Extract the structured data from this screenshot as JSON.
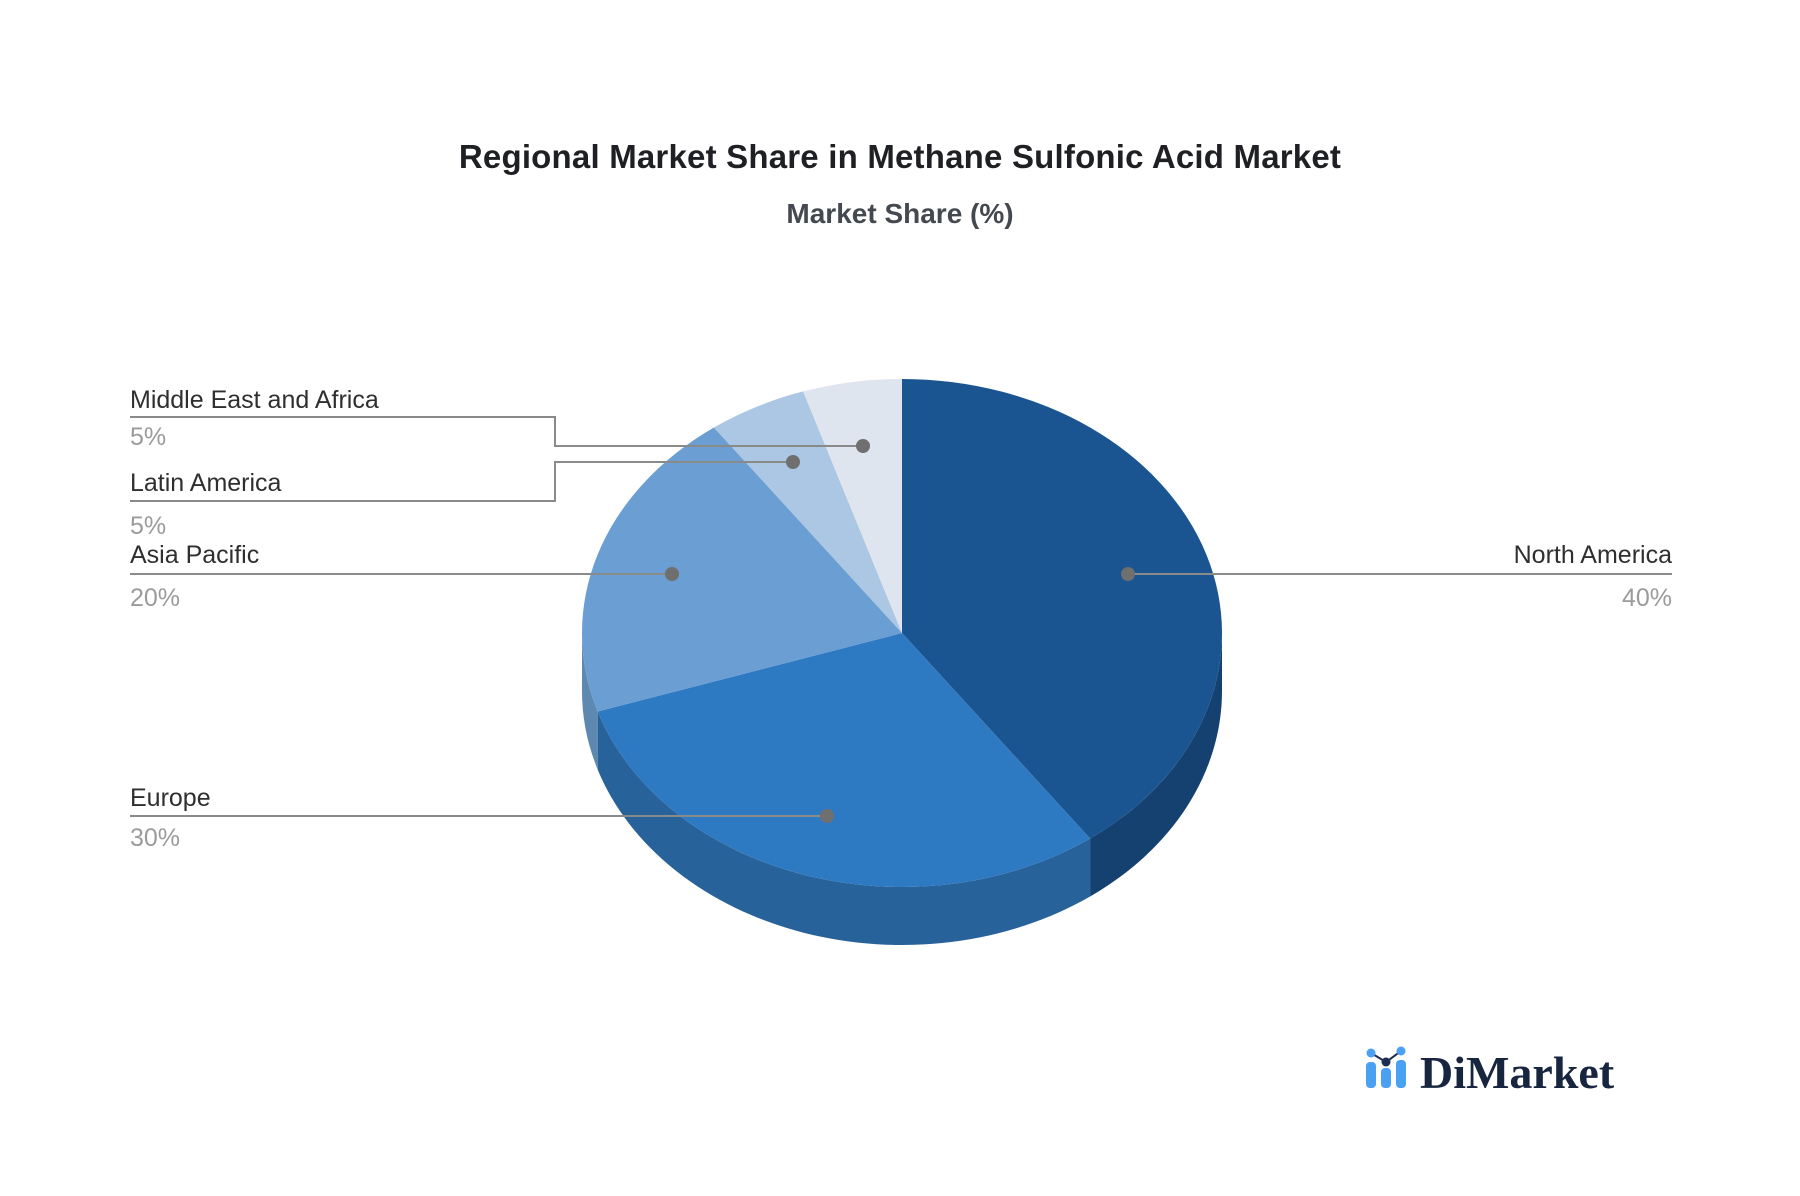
{
  "title": "Regional Market Share in Methane Sulfonic Acid Market",
  "subtitle": "Market Share (%)",
  "chart_data": {
    "type": "pie",
    "style": "3d",
    "title": "Regional Market Share in Methane Sulfonic Acid Market",
    "subtitle": "Market Share (%)",
    "unit": "%",
    "start_angle_deg": 90,
    "direction": "clockwise",
    "legend_position": "callout-labels",
    "slices": [
      {
        "label": "North America",
        "value": 40,
        "pct_label": "40%",
        "color": "#1a5591",
        "side_color": "#14416f"
      },
      {
        "label": "Europe",
        "value": 30,
        "pct_label": "30%",
        "color": "#2e7ac2",
        "side_color": "#27629b"
      },
      {
        "label": "Asia Pacific",
        "value": 20,
        "pct_label": "20%",
        "color": "#6b9ed3",
        "side_color": "#5d88af"
      },
      {
        "label": "Latin America",
        "value": 5,
        "pct_label": "5%",
        "color": "#abc7e3",
        "side_color": "#8ba9c4"
      },
      {
        "label": "Middle East and Africa",
        "value": 5,
        "pct_label": "5%",
        "color": "#dfe5ee",
        "side_color": "#bcc5d4"
      }
    ]
  },
  "logo": {
    "text": "DiMarket",
    "icon": "bar-line-chart-icon",
    "icon_bar_color": "#4aa0f2",
    "icon_dot_dark_color": "#1d2e52",
    "text_color": "#17253f"
  },
  "colors": {
    "background": "#ffffff",
    "leader_line": "#8a8a8a",
    "leader_dot": "#6f6f6f",
    "label_text": "#2f2f2f",
    "pct_text": "#9b9b9b",
    "title_text": "#1f2024",
    "subtitle_text": "#44484f"
  }
}
